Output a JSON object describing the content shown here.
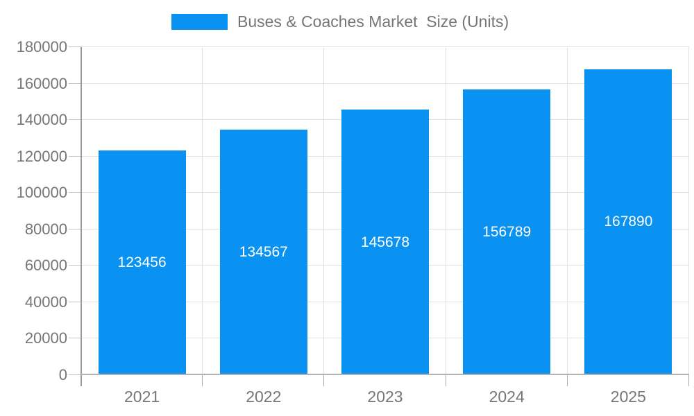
{
  "legend": {
    "label": "Buses & Coaches Market  Size (Units)"
  },
  "colors": {
    "bar": "#0992f2",
    "axis_text": "#757575",
    "value_label_text": "#ffffff",
    "gridline": "#e2e2e2",
    "axis_line": "#9a9a9a",
    "zero_line": "#b3b3b3",
    "background": "#ffffff"
  },
  "chart_data": {
    "type": "bar",
    "title": "Buses & Coaches Market  Size (Units)",
    "categories": [
      "2021",
      "2022",
      "2023",
      "2024",
      "2025"
    ],
    "series": [
      {
        "name": "Buses & Coaches Market  Size (Units)",
        "values": [
          123456,
          134567,
          145678,
          156789,
          167890
        ]
      }
    ],
    "bar_value_labels": [
      "123456",
      "134567",
      "145678",
      "156789",
      "167890"
    ],
    "xlabel": "",
    "ylabel": "",
    "ylim": [
      0,
      180000
    ],
    "ytick_step": 20000,
    "yticks": [
      0,
      20000,
      40000,
      60000,
      80000,
      100000,
      120000,
      140000,
      160000,
      180000
    ],
    "ytick_labels": [
      "0",
      "20000",
      "40000",
      "60000",
      "80000",
      "100000",
      "120000",
      "140000",
      "160000",
      "180000"
    ],
    "grid": "on",
    "legend_position": "top-center"
  }
}
